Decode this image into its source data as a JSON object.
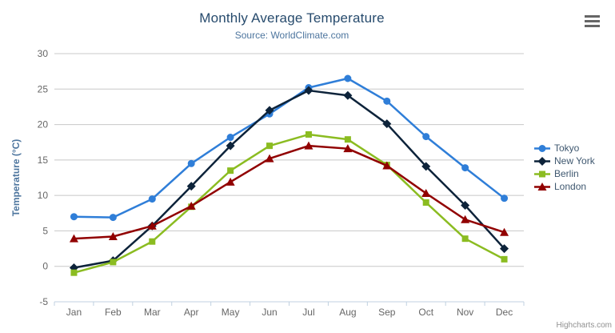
{
  "header": {
    "title": "Monthly Average Temperature",
    "subtitle": "Source: WorldClimate.com"
  },
  "credit": {
    "label": "Highcharts.com"
  },
  "icons": {
    "context_menu": "hamburger-menu-icon"
  },
  "colors": {
    "title": "#274b6d",
    "subtitle": "#4d759e",
    "axis_title": "#4d759e",
    "axis_labels": "#666666",
    "gridline": "#c8c8c8",
    "axis_line": "#c0d0e0",
    "legend_text": "#3e576f",
    "credit": "#909090"
  },
  "chart_data": {
    "type": "line",
    "title": "Monthly Average Temperature",
    "subtitle": "Source: WorldClimate.com",
    "xlabel": "",
    "ylabel": "Temperature (°C)",
    "categories": [
      "Jan",
      "Feb",
      "Mar",
      "Apr",
      "May",
      "Jun",
      "Jul",
      "Aug",
      "Sep",
      "Oct",
      "Nov",
      "Dec"
    ],
    "ylim": [
      -5,
      30
    ],
    "yticks": [
      -5,
      0,
      5,
      10,
      15,
      20,
      25,
      30
    ],
    "grid": true,
    "legend_position": "right-middle",
    "series": [
      {
        "name": "Tokyo",
        "color": "#2f7ed8",
        "marker": "circle",
        "values": [
          7.0,
          6.9,
          9.5,
          14.5,
          18.2,
          21.5,
          25.2,
          26.5,
          23.3,
          18.3,
          13.9,
          9.6
        ]
      },
      {
        "name": "New York",
        "color": "#0d233a",
        "marker": "diamond",
        "values": [
          -0.2,
          0.8,
          5.7,
          11.3,
          17.0,
          22.0,
          24.8,
          24.1,
          20.1,
          14.1,
          8.6,
          2.5
        ]
      },
      {
        "name": "Berlin",
        "color": "#8bbc21",
        "marker": "square",
        "values": [
          -0.9,
          0.6,
          3.5,
          8.4,
          13.5,
          17.0,
          18.6,
          17.9,
          14.3,
          9.0,
          3.9,
          1.0
        ]
      },
      {
        "name": "London",
        "color": "#910000",
        "marker": "triangle",
        "values": [
          3.9,
          4.2,
          5.7,
          8.5,
          11.9,
          15.2,
          17.0,
          16.6,
          14.2,
          10.3,
          6.6,
          4.8
        ]
      }
    ]
  }
}
